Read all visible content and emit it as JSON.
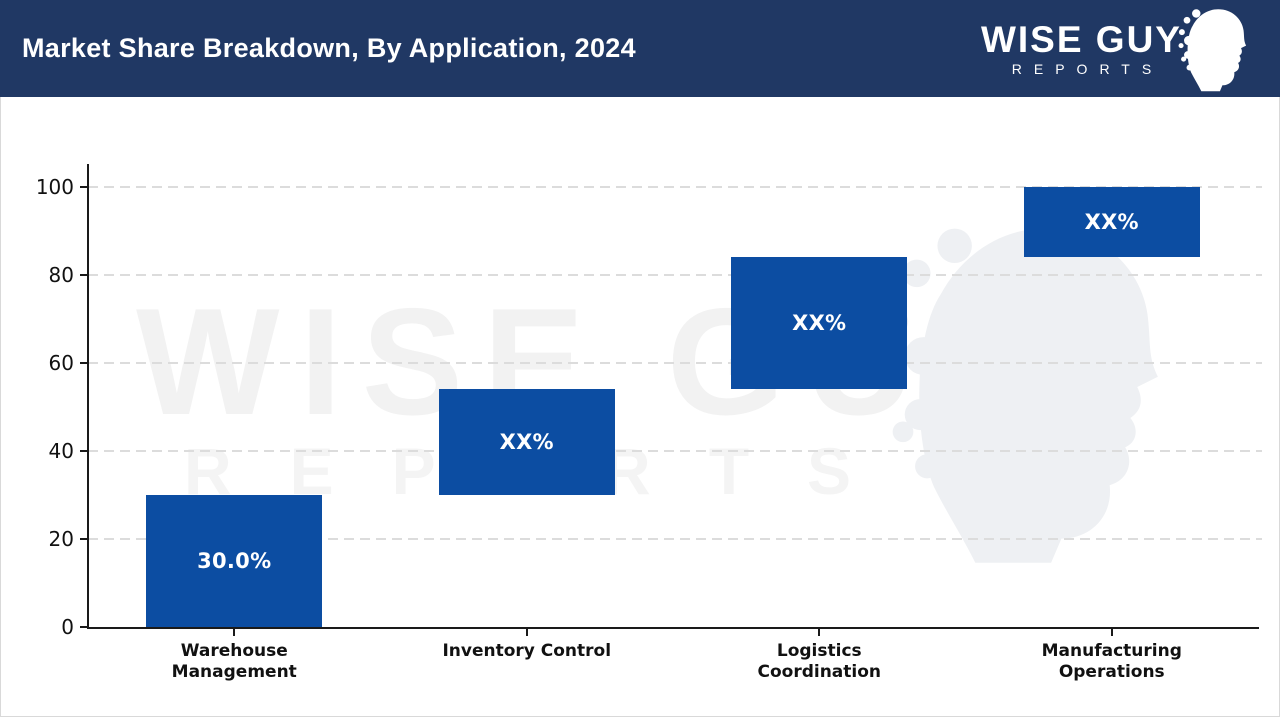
{
  "header": {
    "title": "Market Share Breakdown, By Application, 2024",
    "logo": {
      "line1": "WISE GUY",
      "line2": "REPORTS"
    }
  },
  "watermark": {
    "line1": "WISE GU",
    "line2": "REPORTS"
  },
  "chart_data": {
    "type": "bar",
    "subtype": "waterfall",
    "title": "Market Share Breakdown, By Application, 2024",
    "unit": "percent",
    "categories": [
      "Warehouse\nManagement",
      "Inventory Control",
      "Logistics\nCoordination",
      "Manufacturing\nOperations"
    ],
    "segments": [
      {
        "category": "Warehouse Management",
        "start": 0,
        "end": 30,
        "label": "30.0%"
      },
      {
        "category": "Inventory Control",
        "start": 30,
        "end": 54,
        "label": "XX%"
      },
      {
        "category": "Logistics Coordination",
        "start": 54,
        "end": 84,
        "label": "XX%"
      },
      {
        "category": "Manufacturing Operations",
        "start": 84,
        "end": 100,
        "label": "XX%"
      }
    ],
    "yticks": [
      0,
      20,
      40,
      60,
      80,
      100
    ],
    "ylim": [
      0,
      105
    ],
    "xlabel": "",
    "ylabel": "",
    "grid": "horizontal-dashed",
    "legend": "none",
    "colors": {
      "bar": "#0c4da2",
      "bar_label": "#ffffff",
      "axis": "#1a1a1a",
      "gridline": "#dcdcdc",
      "header_bg": "#203864",
      "header_text": "#ffffff",
      "watermark": "#f2f2f2"
    }
  }
}
